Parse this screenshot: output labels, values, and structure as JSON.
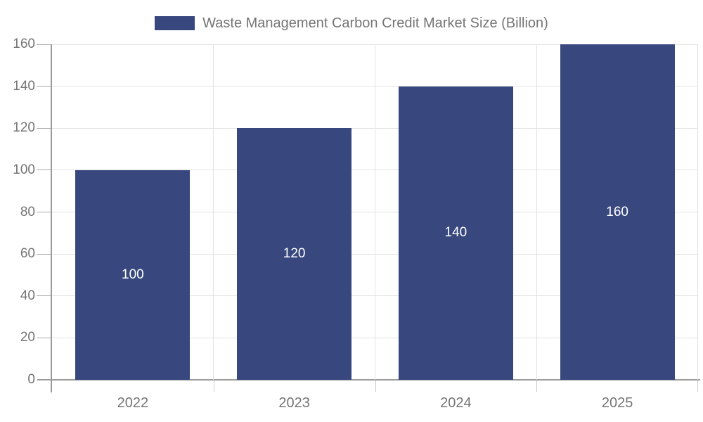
{
  "chart_data": {
    "type": "bar",
    "title": "Waste Management Carbon Credit Market Size (Billion)",
    "categories": [
      "2022",
      "2023",
      "2024",
      "2025"
    ],
    "values": [
      100,
      120,
      140,
      160
    ],
    "bar_value_labels": [
      "100",
      "120",
      "140",
      "160"
    ],
    "xlabel": "",
    "ylabel": "",
    "ylim": [
      0,
      160
    ],
    "yticks": [
      0,
      20,
      40,
      60,
      80,
      100,
      120,
      140,
      160
    ],
    "grid": "on",
    "legend": {
      "position": "top-center",
      "entries": [
        "Waste Management Carbon Credit Market Size (Billion)"
      ]
    },
    "colors": {
      "bar": "#38487e",
      "bar_label_text": "#ffffff",
      "axis_line": "#9a9a9a",
      "gridline": "#e2e2e2",
      "tick_text": "#757575",
      "legend_text": "#757575"
    }
  }
}
